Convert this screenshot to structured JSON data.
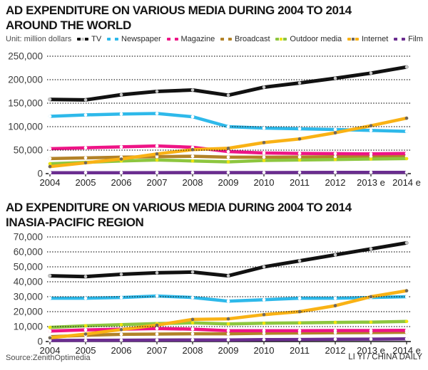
{
  "legend": {
    "unit_label": "Unit: million dollars",
    "items": [
      {
        "id": "tv",
        "label": "TV",
        "color": "#111111",
        "marker": "#c9c9c9"
      },
      {
        "id": "newspaper",
        "label": "Newspaper",
        "color": "#2eb9ea",
        "marker": "#ffffff"
      },
      {
        "id": "magazine",
        "label": "Magazine",
        "color": "#ee1486",
        "marker": "#ffffff"
      },
      {
        "id": "broadcast",
        "label": "Broadcast",
        "color": "#b28228",
        "marker": "#ffffff"
      },
      {
        "id": "outdoor",
        "label": "Outdoor media",
        "color": "#8dc63f",
        "marker": "#f0e40c"
      },
      {
        "id": "internet",
        "label": "Internet",
        "color": "#f9b215",
        "marker": "#70675c"
      },
      {
        "id": "film",
        "label": "Film",
        "color": "#6b2d90",
        "marker": "#ffffff"
      }
    ]
  },
  "footer": {
    "source": "Source:ZenithOptimedia",
    "credit": "LI YI / CHINA DAILY"
  },
  "chart_data": [
    {
      "type": "line",
      "title_line1": "AD EXPENDITURE ON VARIOUS MEDIA DURING 2004 TO 2014",
      "title_line2": "AROUND THE WORLD",
      "unit": "million dollars",
      "grid": "dotted horizontal",
      "legend_position": "top",
      "categories": [
        "2004",
        "2005",
        "2006",
        "2007",
        "2008",
        "2009",
        "2010",
        "2011",
        "2012",
        "2013 e",
        "2014 e"
      ],
      "ylim": [
        0,
        250000
      ],
      "ytick_step": 50000,
      "series": [
        {
          "name": "TV",
          "values": [
            158000,
            157000,
            168000,
            175000,
            178000,
            167000,
            184000,
            193000,
            203000,
            214000,
            227000
          ]
        },
        {
          "name": "Newspaper",
          "values": [
            122000,
            125000,
            127000,
            128000,
            121000,
            100000,
            97000,
            95500,
            94000,
            92000,
            90000
          ]
        },
        {
          "name": "Magazine",
          "values": [
            53000,
            55000,
            57000,
            59000,
            56000,
            47000,
            44000,
            43000,
            42500,
            42000,
            43000
          ]
        },
        {
          "name": "Broadcast",
          "values": [
            32000,
            33500,
            35000,
            36000,
            37000,
            35000,
            35000,
            35500,
            36000,
            36500,
            37000
          ]
        },
        {
          "name": "Outdoor media",
          "values": [
            21000,
            24000,
            27000,
            29000,
            27000,
            25000,
            28000,
            29000,
            30000,
            31000,
            32000
          ]
        },
        {
          "name": "Internet",
          "values": [
            15000,
            23000,
            31000,
            42000,
            51000,
            54000,
            66000,
            74000,
            87000,
            102000,
            118000
          ]
        },
        {
          "name": "Film",
          "values": [
            1800,
            1900,
            2000,
            2100,
            2200,
            2200,
            2300,
            2400,
            2500,
            2500,
            2600
          ]
        }
      ]
    },
    {
      "type": "line",
      "title_line1": "AD EXPENDITURE ON VARIOUS MEDIA DURING 2004 TO 2014",
      "title_line2": "INASIA-PACIFIC REGION",
      "unit": "million dollars",
      "grid": "dotted horizontal",
      "legend_position": "top",
      "categories": [
        "2004",
        "2005",
        "2006",
        "2007",
        "2008",
        "2009",
        "2010",
        "2011",
        "2012",
        "2013 e",
        "2014 e"
      ],
      "ylim": [
        0,
        70000
      ],
      "ytick_step": 10000,
      "series": [
        {
          "name": "TV",
          "values": [
            44000,
            43500,
            45000,
            46000,
            46500,
            44000,
            50000,
            54000,
            58000,
            62000,
            66000
          ]
        },
        {
          "name": "Newspaper",
          "values": [
            29000,
            29000,
            29500,
            30500,
            29500,
            27000,
            28000,
            29000,
            29000,
            29500,
            30000
          ]
        },
        {
          "name": "Magazine",
          "values": [
            7000,
            7800,
            8300,
            8700,
            8300,
            7300,
            7300,
            7300,
            7400,
            7400,
            7500
          ]
        },
        {
          "name": "Broadcast",
          "values": [
            3200,
            4200,
            4800,
            5000,
            5200,
            5200,
            5500,
            5700,
            5900,
            6000,
            6200
          ]
        },
        {
          "name": "Outdoor media",
          "values": [
            9500,
            10500,
            11300,
            12000,
            12500,
            11800,
            12300,
            12500,
            12800,
            13000,
            13500
          ]
        },
        {
          "name": "Internet",
          "values": [
            2500,
            5000,
            8000,
            11000,
            14800,
            15200,
            18000,
            20000,
            24000,
            30000,
            34000
          ]
        },
        {
          "name": "Film",
          "values": [
            700,
            800,
            900,
            1000,
            1100,
            1100,
            1300,
            1400,
            1500,
            1600,
            1800
          ]
        }
      ]
    }
  ]
}
